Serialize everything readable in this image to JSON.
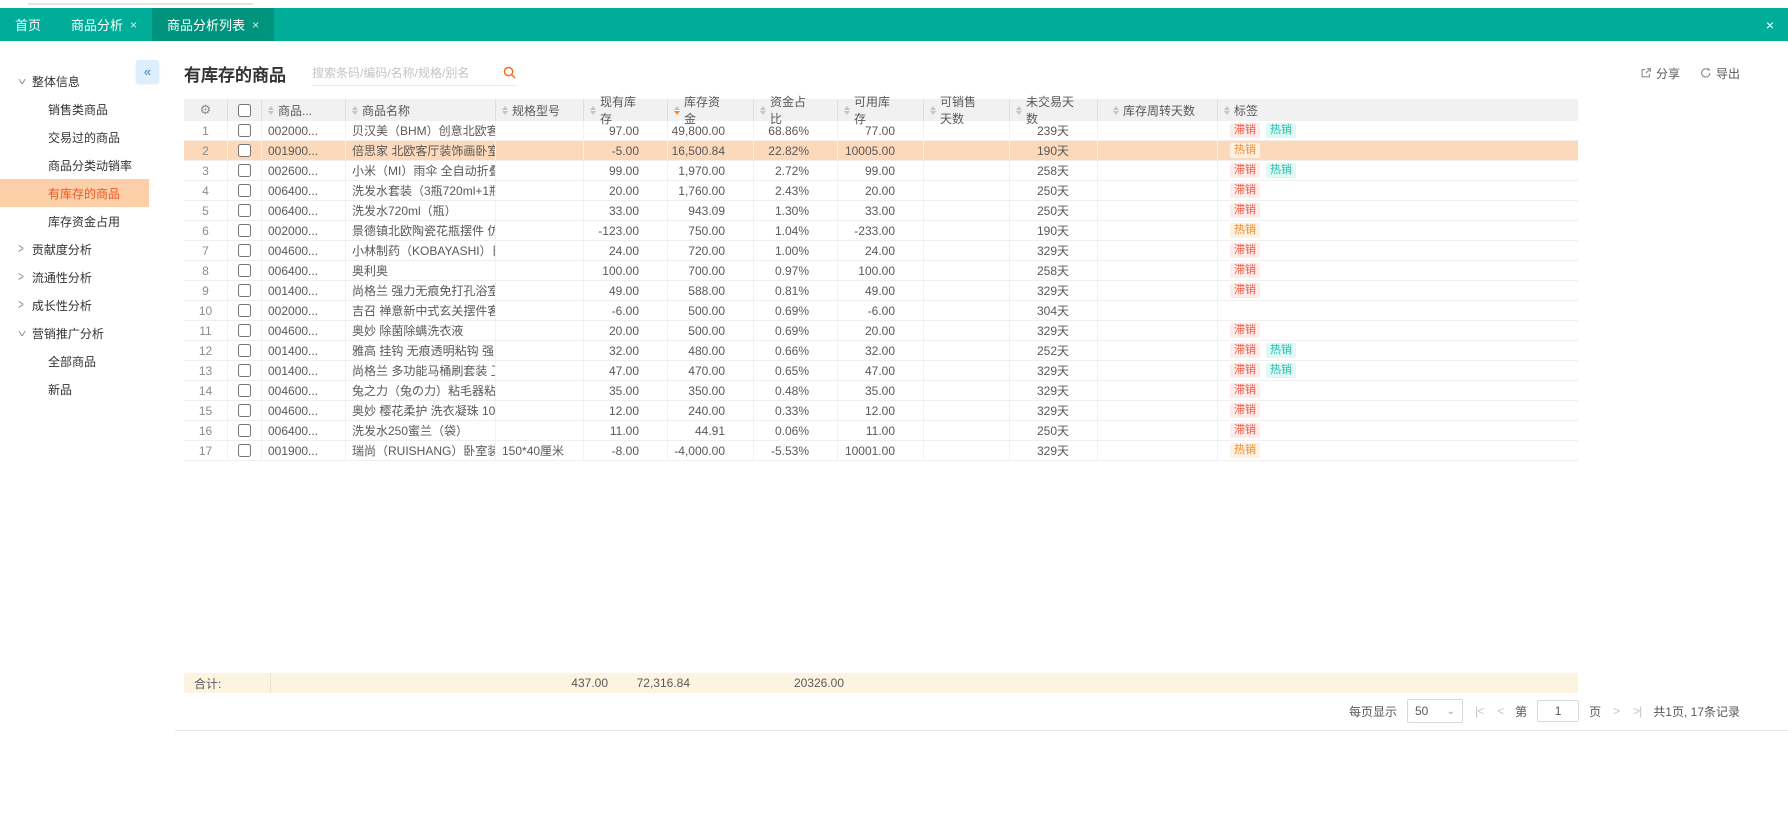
{
  "colors": {
    "teal": "#00ad99",
    "teal_dark": "#00947e",
    "accent_orange": "#f78a2a",
    "side_active_bg": "#fccfa9",
    "side_active_fg": "#f0561d",
    "row_highlight": "#fcd9ba",
    "totals_bg": "#fdf3e1",
    "tag_red": "#f25643",
    "tag_red_bg": "#fdecea",
    "tag_teal": "#1bbfa9",
    "tag_teal_bg": "#e2f8f4",
    "tag_orange": "#f78a2a",
    "tag_orange_bg": "#fdf1e2"
  },
  "topbar": {
    "tabs": [
      {
        "label": "首页",
        "closable": false,
        "active": false
      },
      {
        "label": "商品分析",
        "closable": true,
        "active": false
      },
      {
        "label": "商品分析列表",
        "closable": true,
        "active": true
      }
    ],
    "window_close": "×"
  },
  "sidebar": {
    "collapse_icon": "«",
    "active_item": "有库存的商品",
    "tree": [
      {
        "label": "整体信息",
        "expanded": true,
        "children": [
          "销售类商品",
          "交易过的商品",
          "商品分类动销率",
          "有库存的商品",
          "库存资金占用"
        ]
      },
      {
        "label": "贡献度分析",
        "expanded": false,
        "children": []
      },
      {
        "label": "流通性分析",
        "expanded": false,
        "children": []
      },
      {
        "label": "成长性分析",
        "expanded": false,
        "children": []
      },
      {
        "label": "营销推广分析",
        "expanded": true,
        "children": [
          "全部商品",
          "新品"
        ]
      }
    ]
  },
  "header": {
    "title": "有库存的商品",
    "search_placeholder": "搜索条码/编码/名称/规格/别名",
    "share_label": "分享",
    "export_label": "导出"
  },
  "table": {
    "columns": [
      {
        "label": "商品...",
        "align": "left",
        "sorted": null
      },
      {
        "label": "商品名称",
        "align": "left",
        "sorted": null
      },
      {
        "label": "规格型号",
        "align": "left",
        "sorted": null
      },
      {
        "label": "现有库存",
        "align": "num",
        "sorted": null
      },
      {
        "label": "库存资金",
        "align": "num",
        "sorted": "desc"
      },
      {
        "label": "资金占比",
        "align": "num",
        "sorted": null
      },
      {
        "label": "可用库存",
        "align": "num",
        "sorted": null
      },
      {
        "label": "可销售天数",
        "align": "num",
        "sorted": null
      },
      {
        "label": "未交易天数",
        "align": "num",
        "sorted": null
      },
      {
        "label": "库存周转天数",
        "align": "num",
        "sorted": null
      },
      {
        "label": "标签",
        "align": "left",
        "sorted": null
      }
    ],
    "rows": [
      {
        "num": 1,
        "code": "002000...",
        "name": "贝汉美（BHM）创意北欧客",
        "spec": "",
        "stock": "97.00",
        "fund": "49,800.00",
        "ratio": "68.86%",
        "avail": "77.00",
        "sell_days": "",
        "no_trade": "239天",
        "turnover": "",
        "highlight": false,
        "tags": [
          {
            "text": "滞销",
            "type": "red"
          },
          {
            "text": "热销",
            "type": "teal"
          }
        ]
      },
      {
        "num": 2,
        "code": "001900...",
        "name": "倍思家 北欧客厅装饰画卧室",
        "spec": "",
        "stock": "-5.00",
        "fund": "16,500.84",
        "ratio": "22.82%",
        "avail": "10005.00",
        "sell_days": "",
        "no_trade": "190天",
        "turnover": "",
        "highlight": true,
        "tags": [
          {
            "text": "热销",
            "type": "orange"
          }
        ]
      },
      {
        "num": 3,
        "code": "002600...",
        "name": "小米（MI）雨伞 全自动折叠",
        "spec": "",
        "stock": "99.00",
        "fund": "1,970.00",
        "ratio": "2.72%",
        "avail": "99.00",
        "sell_days": "",
        "no_trade": "258天",
        "turnover": "",
        "highlight": false,
        "tags": [
          {
            "text": "滞销",
            "type": "red"
          },
          {
            "text": "热销",
            "type": "teal"
          }
        ]
      },
      {
        "num": 4,
        "code": "006400...",
        "name": "洗发水套装（3瓶720ml+1瓶",
        "spec": "",
        "stock": "20.00",
        "fund": "1,760.00",
        "ratio": "2.43%",
        "avail": "20.00",
        "sell_days": "",
        "no_trade": "250天",
        "turnover": "",
        "highlight": false,
        "tags": [
          {
            "text": "滞销",
            "type": "red"
          }
        ]
      },
      {
        "num": 5,
        "code": "006400...",
        "name": "洗发水720ml（瓶）",
        "spec": "",
        "stock": "33.00",
        "fund": "943.09",
        "ratio": "1.30%",
        "avail": "33.00",
        "sell_days": "",
        "no_trade": "250天",
        "turnover": "",
        "highlight": false,
        "tags": [
          {
            "text": "滞销",
            "type": "red"
          }
        ]
      },
      {
        "num": 6,
        "code": "002000...",
        "name": "景德镇北欧陶瓷花瓶摆件 仿",
        "spec": "",
        "stock": "-123.00",
        "fund": "750.00",
        "ratio": "1.04%",
        "avail": "-233.00",
        "sell_days": "",
        "no_trade": "190天",
        "turnover": "",
        "highlight": false,
        "tags": [
          {
            "text": "热销",
            "type": "orange"
          }
        ]
      },
      {
        "num": 7,
        "code": "004600...",
        "name": "小林制药（KOBAYASHI）日",
        "spec": "",
        "stock": "24.00",
        "fund": "720.00",
        "ratio": "1.00%",
        "avail": "24.00",
        "sell_days": "",
        "no_trade": "329天",
        "turnover": "",
        "highlight": false,
        "tags": [
          {
            "text": "滞销",
            "type": "red"
          }
        ]
      },
      {
        "num": 8,
        "code": "006400...",
        "name": "奥利奥",
        "spec": "",
        "stock": "100.00",
        "fund": "700.00",
        "ratio": "0.97%",
        "avail": "100.00",
        "sell_days": "",
        "no_trade": "258天",
        "turnover": "",
        "highlight": false,
        "tags": [
          {
            "text": "滞销",
            "type": "red"
          }
        ]
      },
      {
        "num": 9,
        "code": "001400...",
        "name": "尚格兰 强力无痕免打孔浴室",
        "spec": "",
        "stock": "49.00",
        "fund": "588.00",
        "ratio": "0.81%",
        "avail": "49.00",
        "sell_days": "",
        "no_trade": "329天",
        "turnover": "",
        "highlight": false,
        "tags": [
          {
            "text": "滞销",
            "type": "red"
          }
        ]
      },
      {
        "num": 10,
        "code": "002000...",
        "name": "吉召 禅意新中式玄关摆件客",
        "spec": "",
        "stock": "-6.00",
        "fund": "500.00",
        "ratio": "0.69%",
        "avail": "-6.00",
        "sell_days": "",
        "no_trade": "304天",
        "turnover": "",
        "highlight": false,
        "tags": []
      },
      {
        "num": 11,
        "code": "004600...",
        "name": "奥妙 除菌除螨洗衣液",
        "spec": "",
        "stock": "20.00",
        "fund": "500.00",
        "ratio": "0.69%",
        "avail": "20.00",
        "sell_days": "",
        "no_trade": "329天",
        "turnover": "",
        "highlight": false,
        "tags": [
          {
            "text": "滞销",
            "type": "red"
          }
        ]
      },
      {
        "num": 12,
        "code": "001400...",
        "name": "雅高 挂钩 无痕透明粘钩 强",
        "spec": "",
        "stock": "32.00",
        "fund": "480.00",
        "ratio": "0.66%",
        "avail": "32.00",
        "sell_days": "",
        "no_trade": "252天",
        "turnover": "",
        "highlight": false,
        "tags": [
          {
            "text": "滞销",
            "type": "red"
          },
          {
            "text": "热销",
            "type": "teal"
          }
        ]
      },
      {
        "num": 13,
        "code": "001400...",
        "name": "尚格兰 多功能马桶刷套装 卫",
        "spec": "",
        "stock": "47.00",
        "fund": "470.00",
        "ratio": "0.65%",
        "avail": "47.00",
        "sell_days": "",
        "no_trade": "329天",
        "turnover": "",
        "highlight": false,
        "tags": [
          {
            "text": "滞销",
            "type": "red"
          },
          {
            "text": "热销",
            "type": "teal"
          }
        ]
      },
      {
        "num": 14,
        "code": "004600...",
        "name": "兔之力（兔の力）粘毛器粘",
        "spec": "",
        "stock": "35.00",
        "fund": "350.00",
        "ratio": "0.48%",
        "avail": "35.00",
        "sell_days": "",
        "no_trade": "329天",
        "turnover": "",
        "highlight": false,
        "tags": [
          {
            "text": "滞销",
            "type": "red"
          }
        ]
      },
      {
        "num": 15,
        "code": "004600...",
        "name": "奥妙 樱花柔护 洗衣凝珠 10",
        "spec": "",
        "stock": "12.00",
        "fund": "240.00",
        "ratio": "0.33%",
        "avail": "12.00",
        "sell_days": "",
        "no_trade": "329天",
        "turnover": "",
        "highlight": false,
        "tags": [
          {
            "text": "滞销",
            "type": "red"
          }
        ]
      },
      {
        "num": 16,
        "code": "006400...",
        "name": "洗发水250蜜兰（袋）",
        "spec": "",
        "stock": "11.00",
        "fund": "44.91",
        "ratio": "0.06%",
        "avail": "11.00",
        "sell_days": "",
        "no_trade": "250天",
        "turnover": "",
        "highlight": false,
        "tags": [
          {
            "text": "滞销",
            "type": "red"
          }
        ]
      },
      {
        "num": 17,
        "code": "001900...",
        "name": "瑞尚（RUISHANG）卧室装",
        "spec": "150*40厘米",
        "stock": "-8.00",
        "fund": "-4,000.00",
        "ratio": "-5.53%",
        "avail": "10001.00",
        "sell_days": "",
        "no_trade": "329天",
        "turnover": "",
        "highlight": false,
        "tags": [
          {
            "text": "热销",
            "type": "orange"
          }
        ]
      }
    ],
    "totals": {
      "label": "合计:",
      "stock": "437.00",
      "fund": "72,316.84",
      "avail": "20326.00"
    }
  },
  "pagination": {
    "page_size_label": "每页显示",
    "page_size": "50",
    "first_icon": "|<",
    "prev_icon": "<",
    "page_prefix": "第",
    "page_value": "1",
    "page_suffix": "页",
    "next_icon": ">",
    "last_icon": ">|",
    "summary": "共1页, 17条记录"
  }
}
